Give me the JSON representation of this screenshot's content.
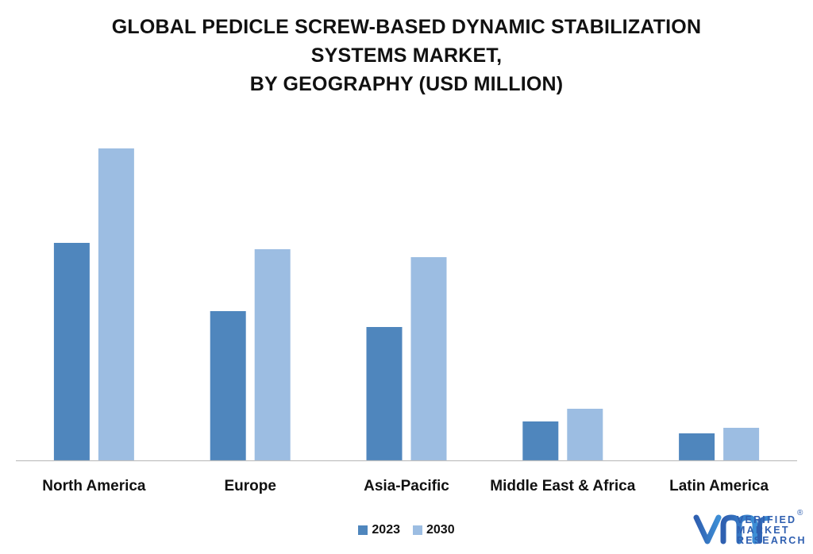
{
  "chart_data": {
    "type": "bar",
    "title_lines": [
      "GLOBAL PEDICLE SCREW-BASED DYNAMIC STABILIZATION",
      "SYSTEMS MARKET,",
      "BY GEOGRAPHY (USD MILLION)"
    ],
    "categories": [
      "North America",
      "Europe",
      "Asia-Pacific",
      "Middle East & Africa",
      "Latin America"
    ],
    "series": [
      {
        "name": "2023",
        "color": "#4f86bd",
        "values": [
          274,
          188,
          168,
          49,
          34
        ]
      },
      {
        "name": "2030",
        "color": "#9cbde2",
        "values": [
          393,
          266,
          256,
          65,
          41
        ]
      }
    ],
    "ylim": [
      0,
      400
    ],
    "grid": false,
    "legend_position": "bottom-center"
  },
  "brand": {
    "logo_icon": "vmr-logo-icon",
    "logo_lines": [
      "VERIFIED",
      "MARKET",
      "RESEARCH"
    ],
    "registered_mark": "®",
    "logo_color": "#2f5fb0"
  }
}
